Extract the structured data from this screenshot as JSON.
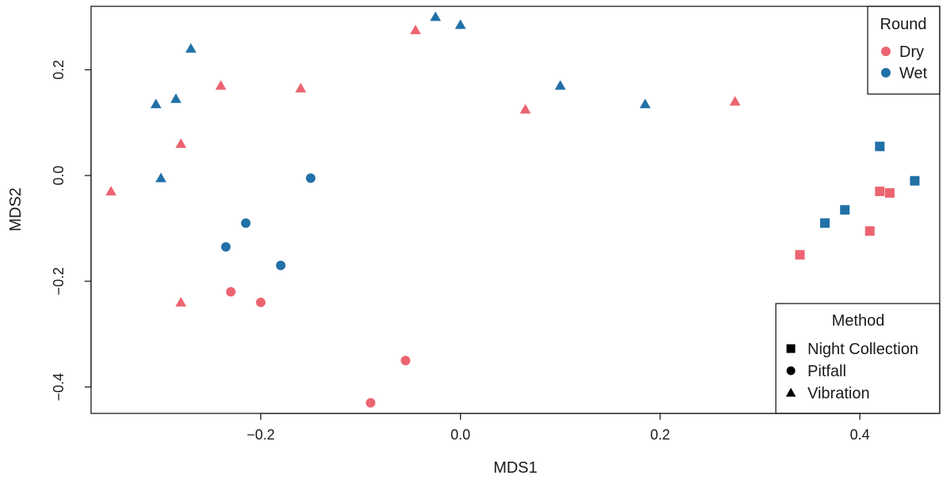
{
  "chart_data": {
    "type": "scatter",
    "title": "",
    "xlabel": "MDS1",
    "ylabel": "MDS2",
    "xlim": [
      -0.37,
      0.48
    ],
    "ylim": [
      -0.45,
      0.32
    ],
    "xticks": [
      -0.2,
      0.0,
      0.2,
      0.4
    ],
    "xtick_labels": [
      "−0.2",
      "0.0",
      "0.2",
      "0.4"
    ],
    "yticks": [
      -0.4,
      -0.2,
      0.0,
      0.2
    ],
    "ytick_labels": [
      "−0.4",
      "−0.2",
      "0.0",
      "0.2"
    ],
    "grid": false,
    "colors": {
      "Dry": "#ec6470",
      "Wet": "#2170a6"
    },
    "legend_round": {
      "title": "Round",
      "position": "top-right",
      "entries": [
        {
          "label": "Dry",
          "color": "#ec6470",
          "shape": "circle"
        },
        {
          "label": "Wet",
          "color": "#2170a6",
          "shape": "circle"
        }
      ]
    },
    "legend_method": {
      "title": "Method",
      "position": "bottom-right",
      "entries": [
        {
          "label": "Night Collection",
          "shape": "square",
          "color": "#000000"
        },
        {
          "label": "Pitfall",
          "shape": "circle",
          "color": "#000000"
        },
        {
          "label": "Vibration",
          "shape": "triangle",
          "color": "#000000"
        }
      ]
    },
    "points": [
      {
        "x": -0.2,
        "y": -0.24,
        "round": "Dry",
        "method": "Pitfall"
      },
      {
        "x": -0.09,
        "y": -0.43,
        "round": "Dry",
        "method": "Pitfall"
      },
      {
        "x": -0.055,
        "y": -0.35,
        "round": "Dry",
        "method": "Pitfall"
      },
      {
        "x": -0.23,
        "y": -0.22,
        "round": "Dry",
        "method": "Pitfall"
      },
      {
        "x": -0.35,
        "y": -0.03,
        "round": "Dry",
        "method": "Vibration"
      },
      {
        "x": -0.28,
        "y": 0.06,
        "round": "Dry",
        "method": "Vibration"
      },
      {
        "x": -0.28,
        "y": -0.24,
        "round": "Dry",
        "method": "Vibration"
      },
      {
        "x": -0.24,
        "y": 0.17,
        "round": "Dry",
        "method": "Vibration"
      },
      {
        "x": -0.16,
        "y": 0.165,
        "round": "Dry",
        "method": "Vibration"
      },
      {
        "x": -0.045,
        "y": 0.275,
        "round": "Dry",
        "method": "Vibration"
      },
      {
        "x": 0.065,
        "y": 0.125,
        "round": "Dry",
        "method": "Vibration"
      },
      {
        "x": 0.275,
        "y": 0.14,
        "round": "Dry",
        "method": "Vibration"
      },
      {
        "x": 0.34,
        "y": -0.15,
        "round": "Dry",
        "method": "Night Collection"
      },
      {
        "x": 0.41,
        "y": -0.105,
        "round": "Dry",
        "method": "Night Collection"
      },
      {
        "x": 0.42,
        "y": -0.03,
        "round": "Dry",
        "method": "Night Collection"
      },
      {
        "x": 0.43,
        "y": -0.033,
        "round": "Dry",
        "method": "Night Collection"
      },
      {
        "x": -0.15,
        "y": -0.005,
        "round": "Wet",
        "method": "Pitfall"
      },
      {
        "x": -0.215,
        "y": -0.09,
        "round": "Wet",
        "method": "Pitfall"
      },
      {
        "x": -0.235,
        "y": -0.135,
        "round": "Wet",
        "method": "Pitfall"
      },
      {
        "x": -0.18,
        "y": -0.17,
        "round": "Wet",
        "method": "Pitfall"
      },
      {
        "x": -0.3,
        "y": -0.005,
        "round": "Wet",
        "method": "Vibration"
      },
      {
        "x": -0.305,
        "y": 0.135,
        "round": "Wet",
        "method": "Vibration"
      },
      {
        "x": -0.285,
        "y": 0.145,
        "round": "Wet",
        "method": "Vibration"
      },
      {
        "x": -0.27,
        "y": 0.24,
        "round": "Wet",
        "method": "Vibration"
      },
      {
        "x": -0.025,
        "y": 0.3,
        "round": "Wet",
        "method": "Vibration"
      },
      {
        "x": 0.0,
        "y": 0.285,
        "round": "Wet",
        "method": "Vibration"
      },
      {
        "x": 0.1,
        "y": 0.17,
        "round": "Wet",
        "method": "Vibration"
      },
      {
        "x": 0.185,
        "y": 0.135,
        "round": "Wet",
        "method": "Vibration"
      },
      {
        "x": 0.365,
        "y": -0.09,
        "round": "Wet",
        "method": "Night Collection"
      },
      {
        "x": 0.385,
        "y": -0.065,
        "round": "Wet",
        "method": "Night Collection"
      },
      {
        "x": 0.42,
        "y": 0.055,
        "round": "Wet",
        "method": "Night Collection"
      },
      {
        "x": 0.455,
        "y": -0.01,
        "round": "Wet",
        "method": "Night Collection"
      }
    ]
  }
}
